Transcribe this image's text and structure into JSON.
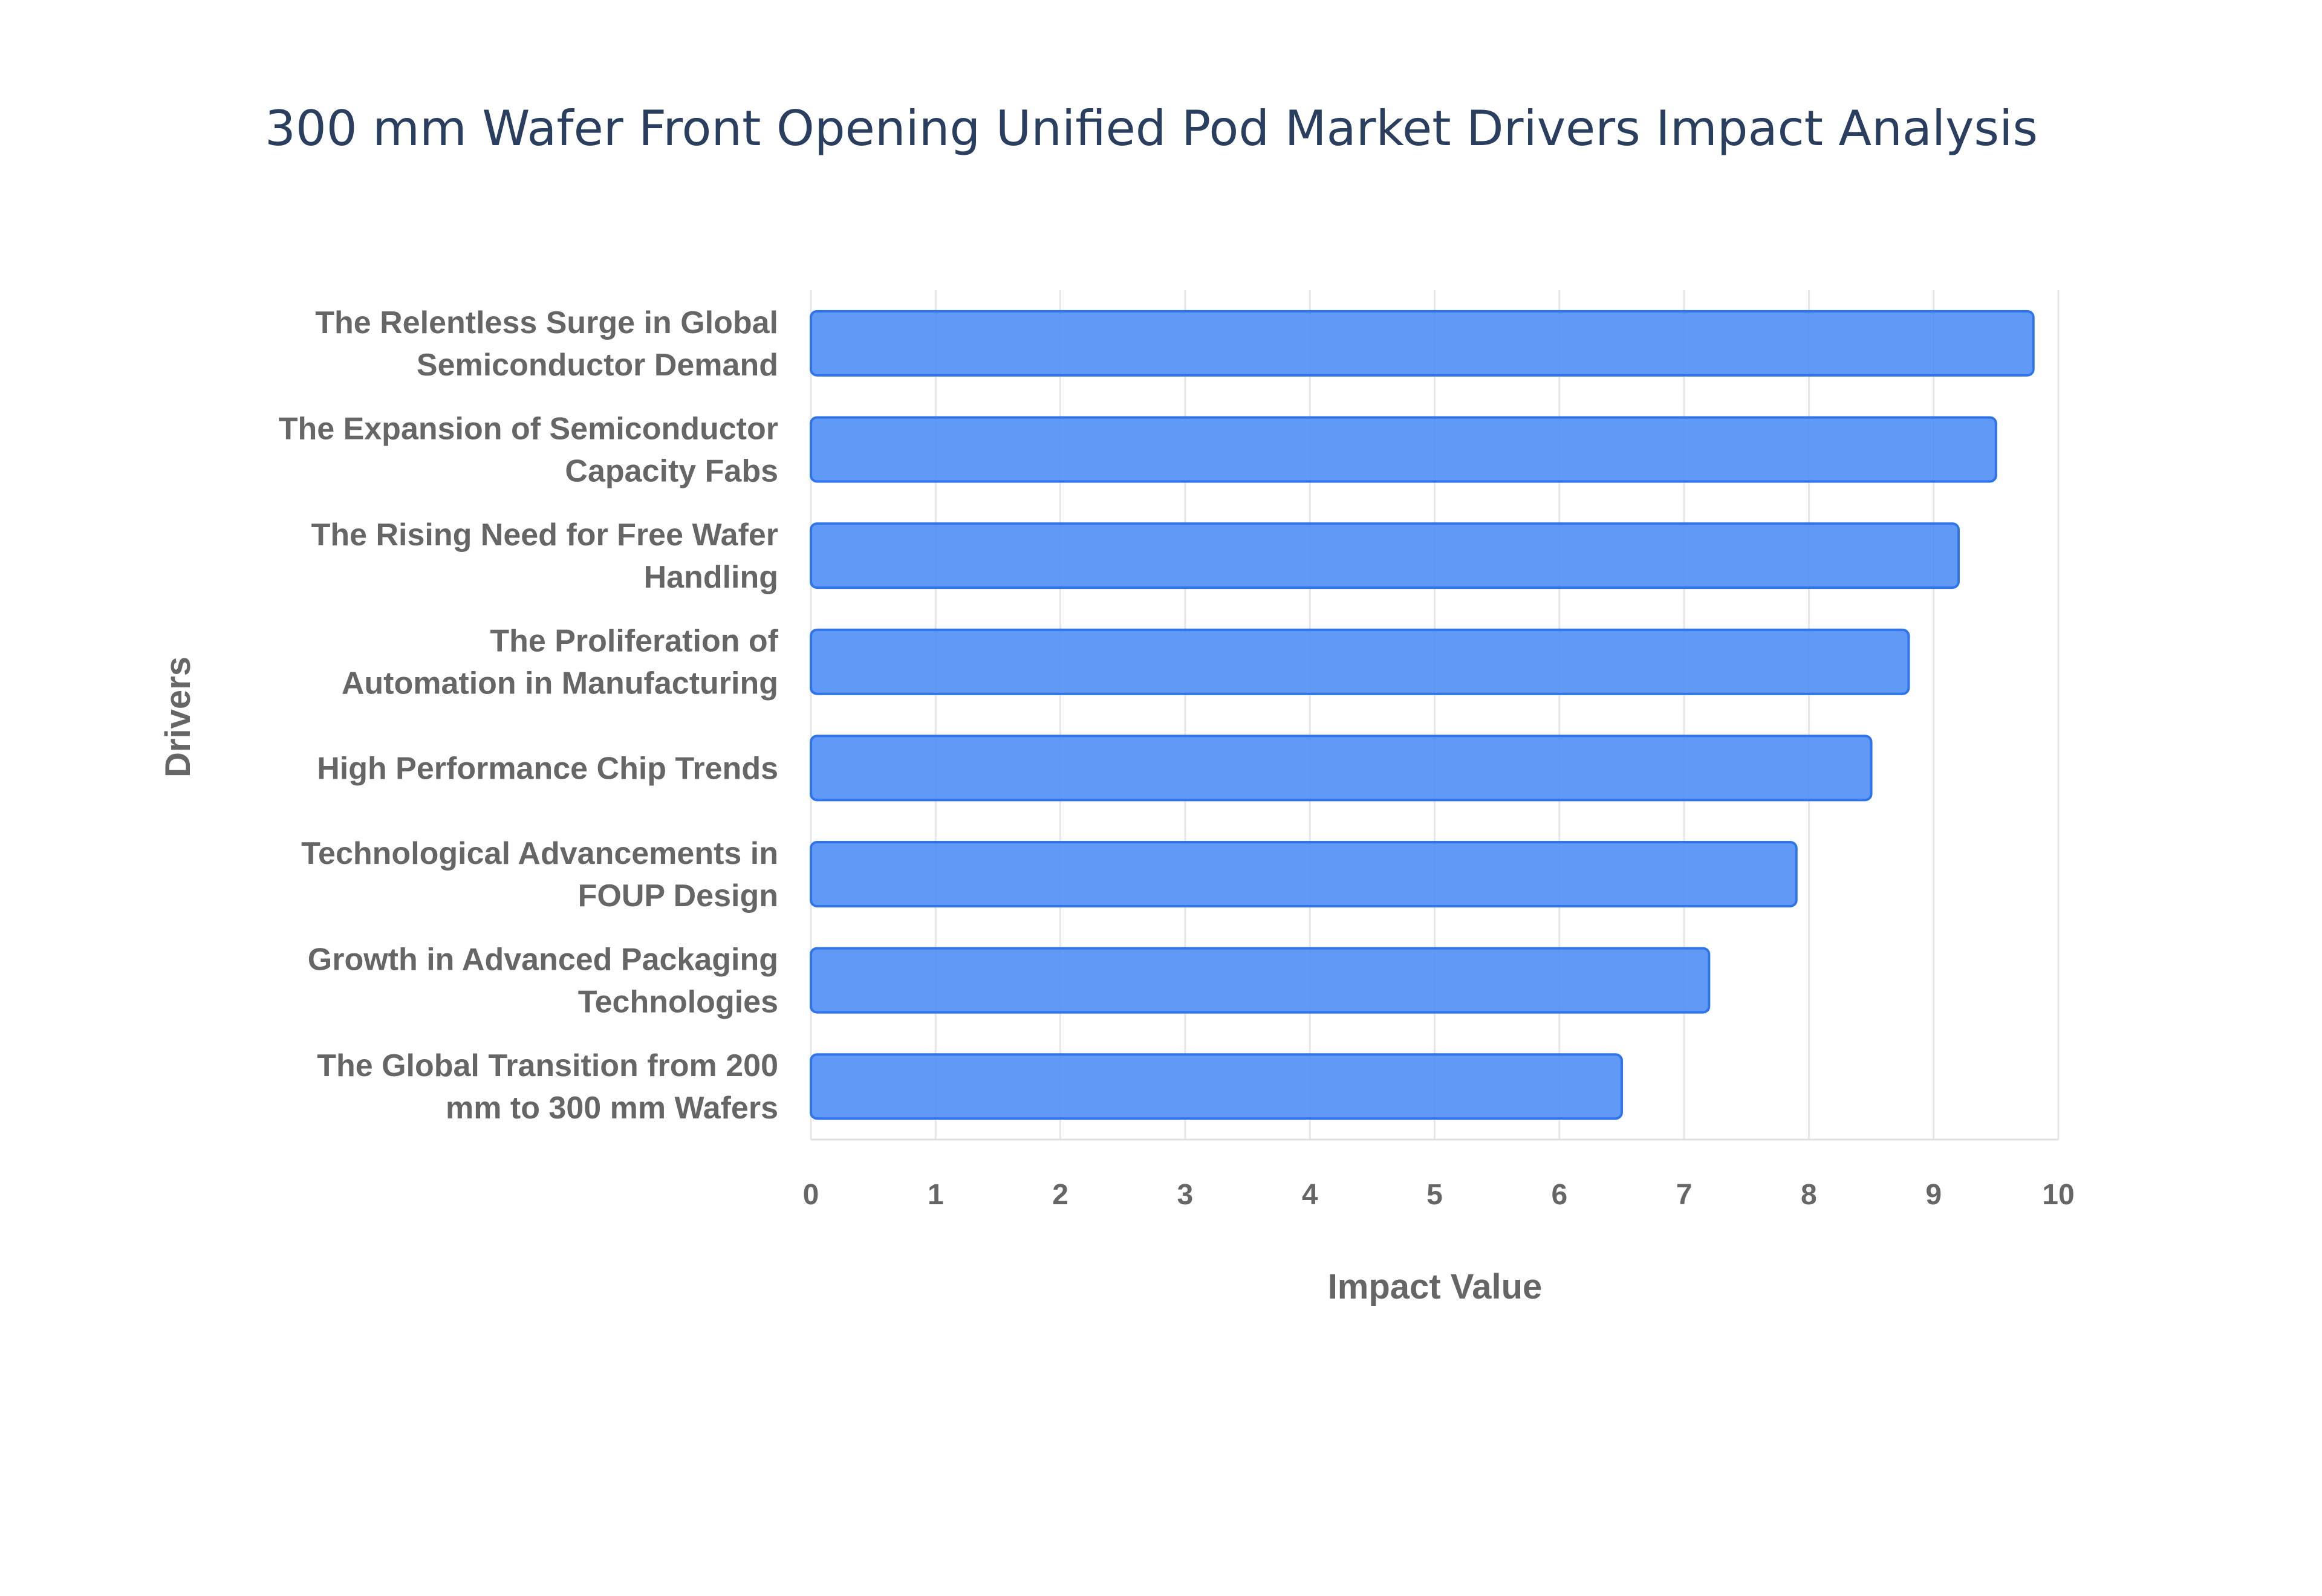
{
  "chart_data": {
    "type": "bar",
    "orientation": "horizontal",
    "title": "300 mm Wafer Front Opening Unified Pod Market Drivers Impact Analysis",
    "xlabel": "Impact Value",
    "ylabel": "Drivers",
    "xlim": [
      0,
      10
    ],
    "xticks": [
      "0",
      "1",
      "2",
      "3",
      "4",
      "5",
      "6",
      "7",
      "8",
      "9",
      "10"
    ],
    "grid": true,
    "bar_color": "#4f8ef5",
    "bar_edge_color": "#2f74ea",
    "categories": [
      [
        "The Relentless Surge in Global",
        "Semiconductor Demand"
      ],
      [
        "The Expansion of Semiconductor",
        "Capacity Fabs"
      ],
      [
        "The Rising Need for Free Wafer",
        "Handling"
      ],
      [
        "The Proliferation of",
        "Automation in Manufacturing"
      ],
      [
        "High Performance Chip Trends"
      ],
      [
        "Technological Advancements in",
        "FOUP Design"
      ],
      [
        "Growth in Advanced Packaging",
        "Technologies"
      ],
      [
        "The Global Transition from 200",
        "mm to 300 mm Wafers"
      ]
    ],
    "values": [
      9.8,
      9.5,
      9.2,
      8.8,
      8.5,
      7.9,
      7.2,
      6.5
    ]
  }
}
